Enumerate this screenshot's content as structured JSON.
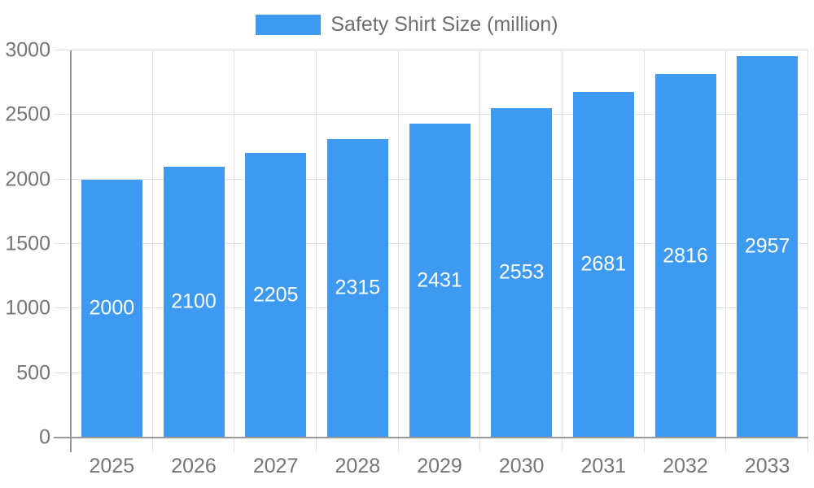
{
  "legend": {
    "label": "Safety Shirt Size (million)"
  },
  "colors": {
    "bar": "#3D9AF0",
    "grid": "#E0E0E0",
    "axis": "#999999",
    "axis_text": "#757575",
    "legend_text": "#6E6E6E",
    "bar_label": "#FFFFFF",
    "background": "#FFFFFF"
  },
  "chart_data": {
    "type": "bar",
    "title": "Safety Shirt Size (million)",
    "series_name": "Safety Shirt Size (million)",
    "categories": [
      "2025",
      "2026",
      "2027",
      "2028",
      "2029",
      "2030",
      "2031",
      "2032",
      "2033"
    ],
    "values": [
      2000,
      2100,
      2205,
      2315,
      2431,
      2553,
      2681,
      2816,
      2957
    ],
    "xlabel": "",
    "ylabel": "",
    "ylim": [
      0,
      3000
    ],
    "yticks": [
      0,
      500,
      1000,
      1500,
      2000,
      2500,
      3000
    ],
    "grid": true,
    "legend_position": "top",
    "bar_labels_visible": true,
    "bar_label_position": "center"
  }
}
